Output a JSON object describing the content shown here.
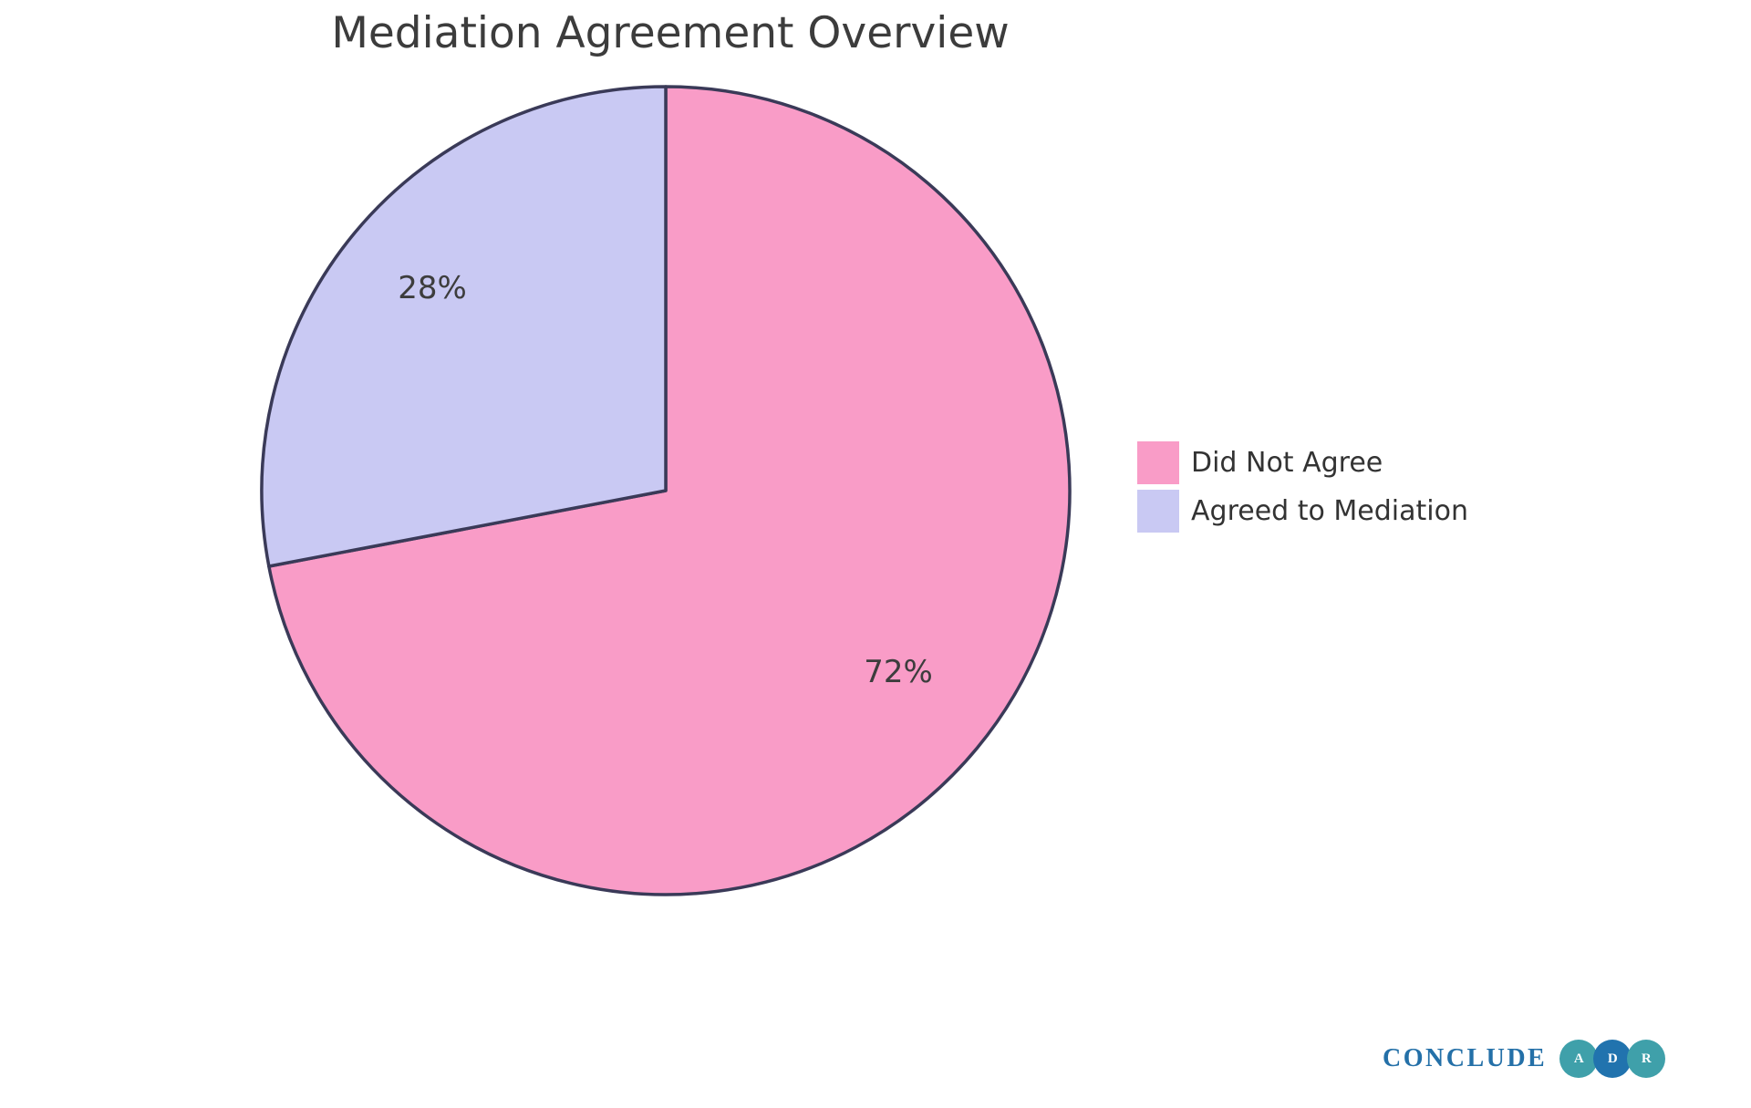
{
  "title": "Mediation Agreement Overview",
  "chart_data": {
    "type": "pie",
    "title": "Mediation Agreement Overview",
    "categories": [
      "Did Not Agree",
      "Agreed to Mediation"
    ],
    "values": [
      72,
      28
    ],
    "unit": "percent",
    "slices": [
      {
        "label": "Did Not Agree",
        "value": 72,
        "display": "72%",
        "color": "#F99CC7"
      },
      {
        "label": "Agreed to Mediation",
        "value": 28,
        "display": "28%",
        "color": "#C9C9F3"
      }
    ],
    "start_angle_deg": 0,
    "direction": "clockwise",
    "stroke_color": "#3A3A58",
    "label_color": "#3d3d3d",
    "legend_position": "right",
    "grid": false
  },
  "branding": {
    "wordmark": "CONCLUDE",
    "wordmark_color": "#2470A8",
    "badges": [
      {
        "letter": "A",
        "color": "#3FA0AA"
      },
      {
        "letter": "D",
        "color": "#2173AE"
      },
      {
        "letter": "R",
        "color": "#3FA0AA"
      }
    ]
  }
}
